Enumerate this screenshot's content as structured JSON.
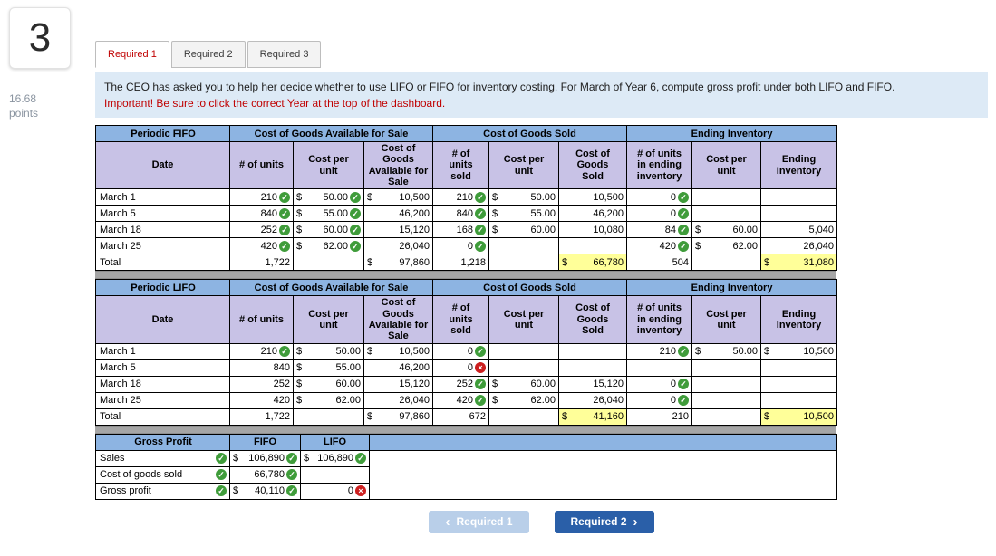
{
  "question": {
    "number": "3",
    "points": "16.68",
    "points_label": "points"
  },
  "tabs": [
    {
      "label": "Required 1",
      "active": true
    },
    {
      "label": "Required 2",
      "active": false
    },
    {
      "label": "Required 3",
      "active": false
    }
  ],
  "instructions": {
    "main": "The CEO has asked you to help her decide whether to use LIFO or FIFO for inventory costing. For March of Year 6, compute gross profit under both LIFO and FIFO.",
    "important": "Important! Be sure to click the correct Year at the top of the dashboard."
  },
  "icons": {
    "check": "✓",
    "x": "×",
    "chevron_left": "‹",
    "chevron_right": "›"
  },
  "colors": {
    "header_blue": "#8db4e2",
    "subheader_lavender": "#c8c2e6",
    "highlight_yellow": "#ffff99",
    "correct_green": "#3f9c3a",
    "incorrect_red": "#cc1f1f",
    "active_tab_red": "#c00000",
    "instruction_bg": "#ddeaf6",
    "important_red": "#c00000",
    "prev_button_blue": "#b9cfe9",
    "next_button_blue": "#2a5fa8"
  },
  "fifo_table": {
    "title": "Periodic FIFO",
    "groups": [
      "Cost of Goods Available for Sale",
      "Cost of Goods Sold",
      "Ending Inventory"
    ],
    "columns": [
      "Date",
      "# of units",
      "Cost per\nunit",
      "Cost of\nGoods\nAvailable for\nSale",
      "# of\nunits\nsold",
      "Cost per\nunit",
      "Cost of\nGoods\nSold",
      "# of units\nin ending\ninventory",
      "Cost per\nunit",
      "Ending\nInventory"
    ],
    "rows": [
      {
        "label": "March 1",
        "cells": [
          {
            "t": "210",
            "i": "check"
          },
          {
            "d": "$",
            "t": "50.00",
            "i": "check"
          },
          {
            "d": "$",
            "t": "10,500"
          },
          {
            "t": "210",
            "i": "check"
          },
          {
            "d": "$",
            "t": "50.00"
          },
          {
            "t": "10,500"
          },
          {
            "t": "0",
            "i": "check"
          },
          {},
          {}
        ]
      },
      {
        "label": "March 5",
        "cells": [
          {
            "t": "840",
            "i": "check"
          },
          {
            "d": "$",
            "t": "55.00",
            "i": "check"
          },
          {
            "t": "46,200"
          },
          {
            "t": "840",
            "i": "check"
          },
          {
            "d": "$",
            "t": "55.00"
          },
          {
            "t": "46,200"
          },
          {
            "t": "0",
            "i": "check"
          },
          {},
          {}
        ]
      },
      {
        "label": "March 18",
        "cells": [
          {
            "t": "252",
            "i": "check"
          },
          {
            "d": "$",
            "t": "60.00",
            "i": "check"
          },
          {
            "t": "15,120"
          },
          {
            "t": "168",
            "i": "check"
          },
          {
            "d": "$",
            "t": "60.00"
          },
          {
            "t": "10,080"
          },
          {
            "t": "84",
            "i": "check"
          },
          {
            "d": "$",
            "t": "60.00"
          },
          {
            "t": "5,040"
          }
        ]
      },
      {
        "label": "March 25",
        "cells": [
          {
            "t": "420",
            "i": "check"
          },
          {
            "d": "$",
            "t": "62.00",
            "i": "check"
          },
          {
            "t": "26,040"
          },
          {
            "t": "0",
            "i": "check"
          },
          {},
          {},
          {
            "t": "420",
            "i": "check"
          },
          {
            "d": "$",
            "t": "62.00"
          },
          {
            "t": "26,040"
          }
        ]
      },
      {
        "label": "Total",
        "total": true,
        "cells": [
          {
            "t": "1,722"
          },
          {},
          {
            "d": "$",
            "t": "97,860"
          },
          {
            "t": "1,218"
          },
          {},
          {
            "d": "$",
            "t": "66,780",
            "h": true
          },
          {
            "t": "504"
          },
          {},
          {
            "d": "$",
            "t": "31,080",
            "h": true
          }
        ]
      }
    ]
  },
  "lifo_table": {
    "title": "Periodic LIFO",
    "groups": [
      "Cost of Goods Available for Sale",
      "Cost of Goods Sold",
      "Ending Inventory"
    ],
    "columns": [
      "Date",
      "# of units",
      "Cost per\nunit",
      "Cost of\nGoods\nAvailable for\nSale",
      "# of\nunits\nsold",
      "Cost per\nunit",
      "Cost of\nGoods\nSold",
      "# of units\nin ending\ninventory",
      "Cost per\nunit",
      "Ending\nInventory"
    ],
    "rows": [
      {
        "label": "March 1",
        "cells": [
          {
            "t": "210",
            "i": "check"
          },
          {
            "d": "$",
            "t": "50.00"
          },
          {
            "d": "$",
            "t": "10,500"
          },
          {
            "t": "0",
            "i": "check"
          },
          {},
          {},
          {
            "t": "210",
            "i": "check"
          },
          {
            "d": "$",
            "t": "50.00"
          },
          {
            "d": "$",
            "t": "10,500"
          }
        ]
      },
      {
        "label": "March 5",
        "cells": [
          {
            "t": "840"
          },
          {
            "d": "$",
            "t": "55.00"
          },
          {
            "t": "46,200"
          },
          {
            "t": "0",
            "i": "x"
          },
          {},
          {},
          {},
          {},
          {}
        ]
      },
      {
        "label": "March 18",
        "cells": [
          {
            "t": "252"
          },
          {
            "d": "$",
            "t": "60.00"
          },
          {
            "t": "15,120"
          },
          {
            "t": "252",
            "i": "check"
          },
          {
            "d": "$",
            "t": "60.00"
          },
          {
            "t": "15,120"
          },
          {
            "t": "0",
            "i": "check"
          },
          {},
          {}
        ]
      },
      {
        "label": "March 25",
        "cells": [
          {
            "t": "420"
          },
          {
            "d": "$",
            "t": "62.00"
          },
          {
            "t": "26,040"
          },
          {
            "t": "420",
            "i": "check"
          },
          {
            "d": "$",
            "t": "62.00"
          },
          {
            "t": "26,040"
          },
          {
            "t": "0",
            "i": "check"
          },
          {},
          {}
        ]
      },
      {
        "label": "Total",
        "total": true,
        "cells": [
          {
            "t": "1,722"
          },
          {},
          {
            "d": "$",
            "t": "97,860"
          },
          {
            "t": "672"
          },
          {},
          {
            "d": "$",
            "t": "41,160",
            "h": true
          },
          {
            "t": "210"
          },
          {},
          {
            "d": "$",
            "t": "10,500",
            "h": true
          }
        ]
      }
    ]
  },
  "gross_profit_table": {
    "title": "Gross Profit",
    "columns": [
      "FIFO",
      "LIFO"
    ],
    "rows": [
      {
        "label": "Sales",
        "label_icon": "check",
        "cells": [
          {
            "d": "$",
            "t": "106,890",
            "i": "check"
          },
          {
            "d": "$",
            "t": "106,890",
            "i": "check"
          }
        ]
      },
      {
        "label": "Cost of goods sold",
        "label_icon": "check",
        "cells": [
          {
            "t": "66,780",
            "i": "check"
          },
          {}
        ]
      },
      {
        "label": "Gross profit",
        "label_icon": "check",
        "cells": [
          {
            "d": "$",
            "t": "40,110",
            "i": "check"
          },
          {
            "t": "0",
            "i": "x"
          }
        ]
      }
    ]
  },
  "nav": {
    "prev_label": "Required 1",
    "next_label": "Required 2"
  }
}
